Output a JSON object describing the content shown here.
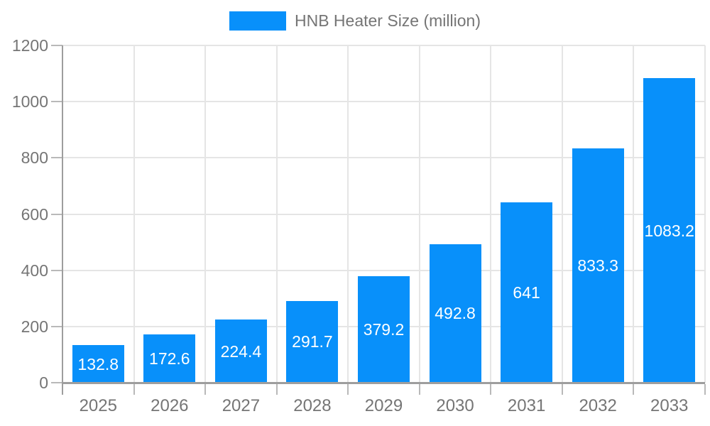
{
  "legend": {
    "label": "HNB Heater Size (million)"
  },
  "chart_data": {
    "type": "bar",
    "title": "HNB Heater Size (million)",
    "categories": [
      "2025",
      "2026",
      "2027",
      "2028",
      "2029",
      "2030",
      "2031",
      "2032",
      "2033"
    ],
    "series": [
      {
        "name": "HNB Heater Size (million)",
        "values": [
          132.8,
          172.6,
          224.4,
          291.7,
          379.2,
          492.8,
          641,
          833.3,
          1083.2
        ]
      }
    ],
    "value_labels": [
      "132.8",
      "172.6",
      "224.4",
      "291.7",
      "379.2",
      "492.8",
      "641",
      "833.3",
      "1083.2"
    ],
    "xlabel": "",
    "ylabel": "",
    "ylim": [
      0,
      1200
    ],
    "y_ticks": [
      0,
      200,
      400,
      600,
      800,
      1000,
      1200
    ],
    "grid": true,
    "legend_position": "top",
    "value_labels_position": "inside-center"
  },
  "colors": {
    "bar": "#0890FA",
    "grid": "#E5E5E5",
    "axis": "#9E9E9E",
    "tick": "#B9B9B9",
    "text": "#757575",
    "value_text": "#FFFFFF",
    "background": "#FFFFFF"
  }
}
